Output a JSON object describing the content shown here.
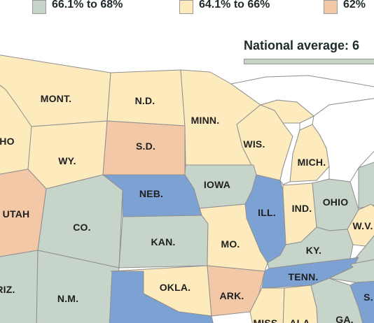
{
  "legend": [
    {
      "label": "66.1% to 68%",
      "color": "#c6d4c9"
    },
    {
      "label": "64.1% to 66%",
      "color": "#fdebbe"
    },
    {
      "label": "62%",
      "color": "#f3c8a6"
    }
  ],
  "national_average": {
    "label": "National average: 6",
    "color": "#c6d4c9"
  },
  "colors": {
    "green": "#c6d4c9",
    "yellow": "#fdebbe",
    "orange": "#f3c8a6",
    "blue": "#7ca2d4",
    "water": "#ffffff",
    "border": "#8f8f8f"
  },
  "states": [
    {
      "abbr": "IDAHO",
      "label": "HO",
      "tier": "yellow"
    },
    {
      "abbr": "MONT",
      "label": "MONT.",
      "tier": "yellow"
    },
    {
      "abbr": "ND",
      "label": "N.D.",
      "tier": "yellow"
    },
    {
      "abbr": "MINN",
      "label": "MINN.",
      "tier": "yellow"
    },
    {
      "abbr": "WY",
      "label": "WY.",
      "tier": "yellow"
    },
    {
      "abbr": "SD",
      "label": "S.D.",
      "tier": "orange"
    },
    {
      "abbr": "WIS",
      "label": "WIS.",
      "tier": "yellow"
    },
    {
      "abbr": "MICH",
      "label": "MICH.",
      "tier": "yellow"
    },
    {
      "abbr": "NEB",
      "label": "NEB.",
      "tier": "blue"
    },
    {
      "abbr": "IOWA",
      "label": "IOWA",
      "tier": "green"
    },
    {
      "abbr": "UTAH",
      "label": "UTAH",
      "tier": "orange"
    },
    {
      "abbr": "CO",
      "label": "CO.",
      "tier": "green"
    },
    {
      "abbr": "ILL",
      "label": "ILL.",
      "tier": "blue"
    },
    {
      "abbr": "IND",
      "label": "IND.",
      "tier": "yellow"
    },
    {
      "abbr": "OHIO",
      "label": "OHIO",
      "tier": "green"
    },
    {
      "abbr": "WV",
      "label": "W.V.",
      "tier": "yellow"
    },
    {
      "abbr": "KAN",
      "label": "KAN.",
      "tier": "green"
    },
    {
      "abbr": "MO",
      "label": "MO.",
      "tier": "yellow"
    },
    {
      "abbr": "KY",
      "label": "KY.",
      "tier": "green"
    },
    {
      "abbr": "TENN",
      "label": "TENN.",
      "tier": "blue"
    },
    {
      "abbr": "ARIZ",
      "label": "RIZ.",
      "tier": "green"
    },
    {
      "abbr": "NM",
      "label": "N.M.",
      "tier": "green"
    },
    {
      "abbr": "OKLA",
      "label": "OKLA.",
      "tier": "yellow"
    },
    {
      "abbr": "ARK",
      "label": "ARK.",
      "tier": "orange"
    },
    {
      "abbr": "MISS",
      "label": "MISS.",
      "tier": "yellow"
    },
    {
      "abbr": "ALA",
      "label": "ALA.",
      "tier": "yellow"
    },
    {
      "abbr": "GA",
      "label": "GA.",
      "tier": "green"
    },
    {
      "abbr": "SC",
      "label": "S.",
      "tier": "blue"
    },
    {
      "abbr": "TEX",
      "label": "",
      "tier": "blue"
    },
    {
      "abbr": "PA",
      "label": "",
      "tier": "green"
    },
    {
      "abbr": "VA",
      "label": "",
      "tier": "green"
    },
    {
      "abbr": "NC",
      "label": "",
      "tier": "green"
    }
  ]
}
